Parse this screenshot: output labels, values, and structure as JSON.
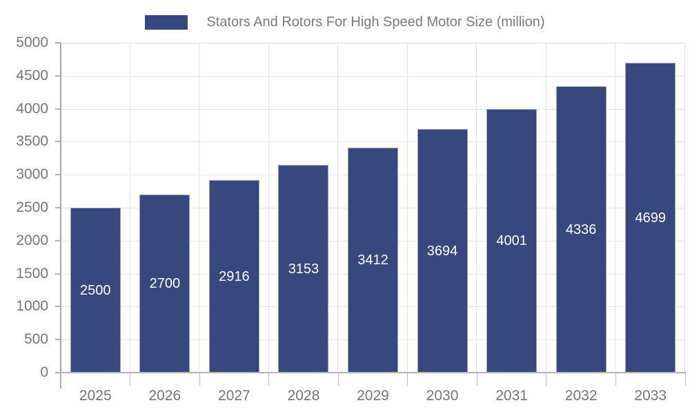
{
  "legend": {
    "label": "Stators And Rotors For High Speed Motor Size (million)",
    "swatch_color": "#36487E",
    "position": "top-center"
  },
  "chart_data": {
    "type": "bar",
    "title": "Stators And Rotors For High Speed Motor Size (million)",
    "series_name": "Stators And Rotors For High Speed Motor Size (million)",
    "categories": [
      "2025",
      "2026",
      "2027",
      "2028",
      "2029",
      "2030",
      "2031",
      "2032",
      "2033"
    ],
    "values": [
      2500,
      2700,
      2916,
      3153,
      3412,
      3694,
      4001,
      4336,
      4699
    ],
    "bar_labels": [
      "2500",
      "2700",
      "2916",
      "3153",
      "3412",
      "3694",
      "4001",
      "4336",
      "4699"
    ],
    "xlabel": "",
    "ylabel": "",
    "ylim": [
      0,
      5000
    ],
    "ytick_step": 500,
    "yticks": [
      0,
      500,
      1000,
      1500,
      2000,
      2500,
      3000,
      3500,
      4000,
      4500,
      5000
    ],
    "grid": true,
    "legend_position": "top",
    "colors": {
      "bar": "#36487E",
      "bar_label": "#ffffff",
      "tick_label": "#757575",
      "title": "#7a7a7a",
      "gridline": "#e3e3e3",
      "axis_line": "#b3b3b3"
    }
  }
}
